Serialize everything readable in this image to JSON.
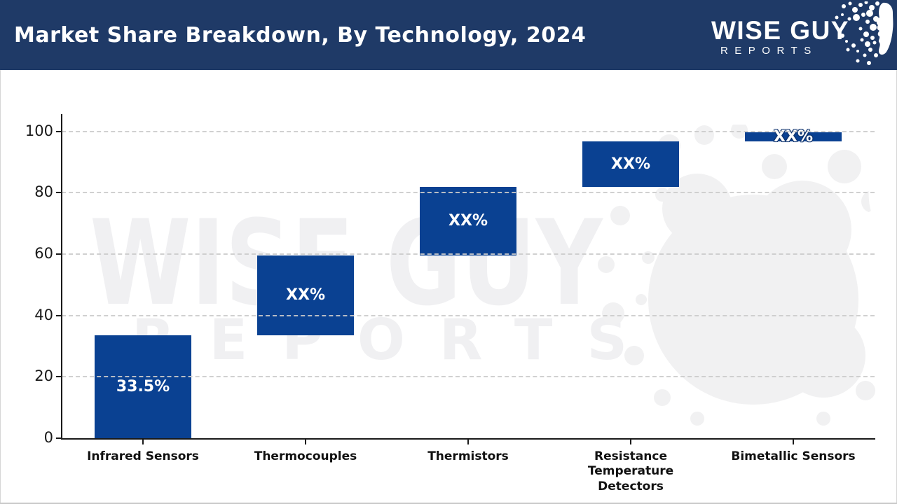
{
  "header": {
    "logo": {
      "line1": "WISE GUY",
      "line2": "REPORTS"
    }
  },
  "watermark": {
    "line1": "WISE GUY",
    "line2": "REPORTS"
  },
  "chart_data": {
    "type": "bar",
    "subtype": "waterfall-floating-bars",
    "title": "Market Share Breakdown, By Technology, 2024",
    "categories": [
      "Infrared Sensors",
      "Thermocouples",
      "Thermistors",
      "Resistance\nTemperature\nDetectors",
      "Bimetallic Sensors"
    ],
    "segments": [
      {
        "category": "Infrared Sensors",
        "start": 0,
        "end": 33.5,
        "label": "33.5%"
      },
      {
        "category": "Thermocouples",
        "start": 33.5,
        "end": 59.6,
        "label": "XX%"
      },
      {
        "category": "Thermistors",
        "start": 59.6,
        "end": 81.8,
        "label": "XX%"
      },
      {
        "category": "Resistance\nTemperature\nDetectors",
        "start": 81.8,
        "end": 96.7,
        "label": "XX%"
      },
      {
        "category": "Bimetallic Sensors",
        "start": 96.7,
        "end": 99.7,
        "label": "XX%"
      }
    ],
    "yticks": [
      0,
      20,
      40,
      60,
      80,
      100
    ],
    "ylim": [
      0,
      105
    ],
    "xlabel": "",
    "ylabel": "",
    "grid": "horizontal-dashed",
    "legend": "none",
    "bar_color": "#0a4192",
    "header_color": "#1f3a67",
    "label_color": "#ffffff"
  }
}
